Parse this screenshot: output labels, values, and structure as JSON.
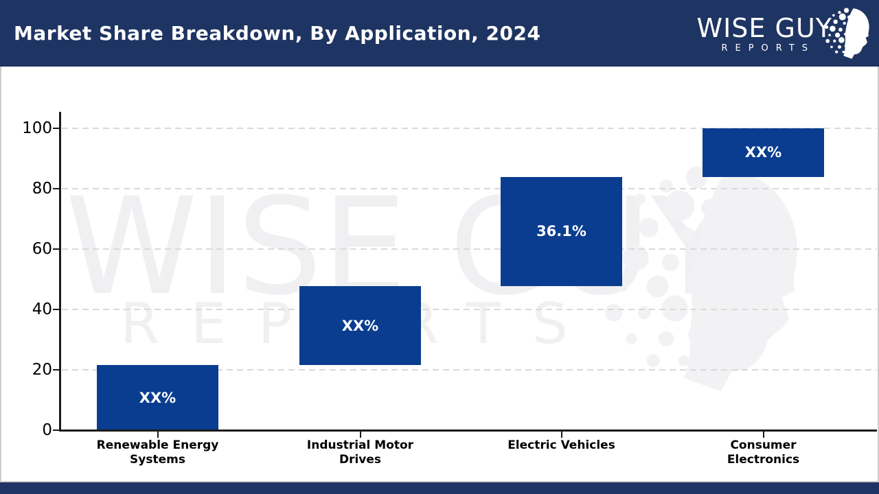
{
  "colors": {
    "header_bg": "#1e3462",
    "footer_bg": "#1e3462",
    "bar": "#0a3d8f",
    "bar_label": "#ffffff",
    "grid": "#d9d9d9",
    "axis": "#1a1a1a",
    "tick_text": "#000000",
    "watermark": "#f0f0f2",
    "body_border": "#cccccc"
  },
  "header": {
    "title": "Market Share Breakdown, By Application, 2024",
    "logo": {
      "name_line": "WISE GUY",
      "sub_line": "REPORTS"
    }
  },
  "watermark": {
    "name_line": "WISE GUY",
    "sub_line": "REPORTS"
  },
  "chart_data": {
    "type": "bar",
    "subtype": "floating-segment-waterfall",
    "title": "Market Share Breakdown, By Application, 2024",
    "xlabel": "",
    "ylabel": "",
    "ylim": [
      0,
      105
    ],
    "yticks": [
      0,
      20,
      40,
      60,
      80,
      100
    ],
    "grid": "horizontal-dashed",
    "legend": "none",
    "categories": [
      "Renewable Energy Systems",
      "Industrial Motor Drives",
      "Electric Vehicles",
      "Consumer Electronics"
    ],
    "category_label_lines": [
      [
        "Renewable Energy",
        "Systems"
      ],
      [
        "Industrial Motor",
        "Drives"
      ],
      [
        "Electric Vehicles"
      ],
      [
        "Consumer",
        "Electronics"
      ]
    ],
    "segments": [
      {
        "category": "Renewable Energy Systems",
        "start": 0,
        "end": 21.5,
        "value_label": "XX%"
      },
      {
        "category": "Industrial Motor Drives",
        "start": 21.5,
        "end": 47.8,
        "value_label": "XX%"
      },
      {
        "category": "Electric Vehicles",
        "start": 47.8,
        "end": 83.9,
        "value_label": "36.1%"
      },
      {
        "category": "Consumer Electronics",
        "start": 83.9,
        "end": 100,
        "value_label": "XX%"
      }
    ]
  }
}
